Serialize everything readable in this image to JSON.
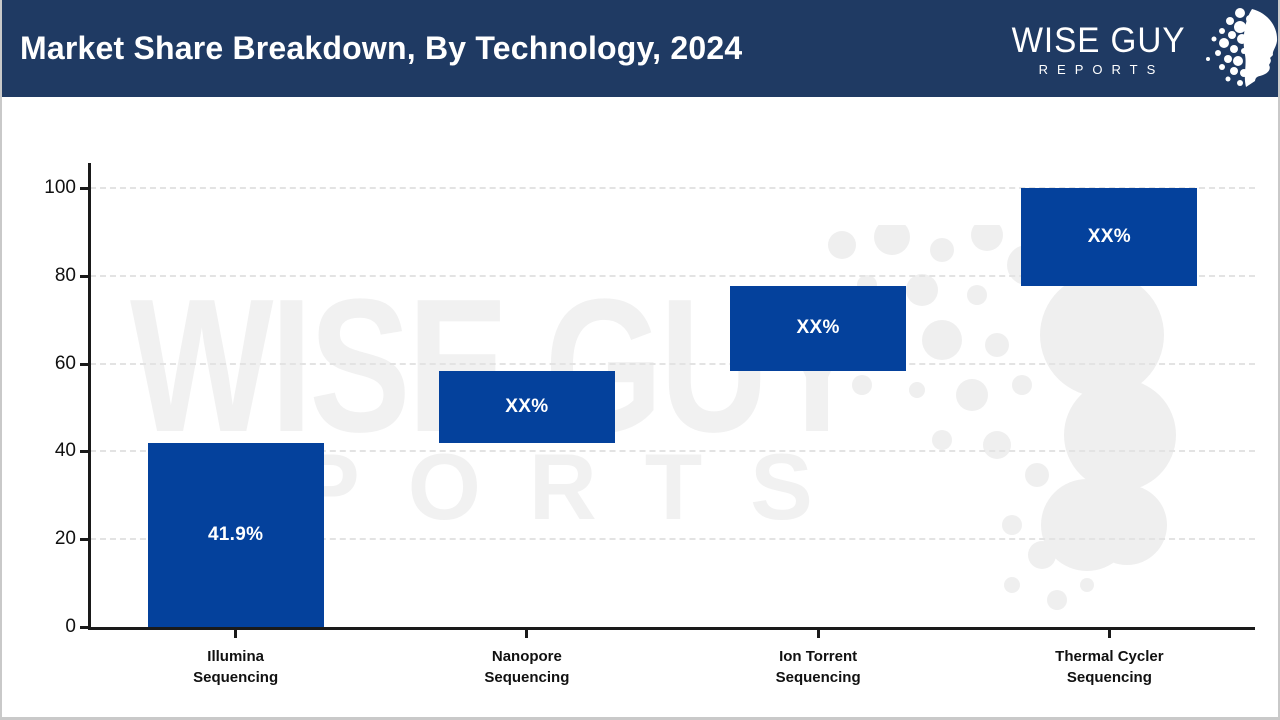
{
  "header": {
    "title": "Market Share Breakdown, By Technology, 2024",
    "logo": {
      "line1": "WISE GUY",
      "line2": "REPORTS"
    }
  },
  "watermark": {
    "line1": "WISE GUY",
    "line2": "PORTS"
  },
  "chart_data": {
    "type": "bar",
    "subtype": "waterfall",
    "title": "Market Share Breakdown, By Technology, 2024",
    "categories": [
      "Illumina\nSequencing",
      "Nanopore\nSequencing",
      "Ion Torrent\nSequencing",
      "Thermal Cycler\nSequencing"
    ],
    "segments": [
      {
        "start": 0,
        "end": 41.9,
        "label": "41.9%"
      },
      {
        "start": 42.0,
        "end": 58.3,
        "label": "XX%"
      },
      {
        "start": 58.3,
        "end": 77.7,
        "label": "XX%"
      },
      {
        "start": 77.7,
        "end": 100,
        "label": "XX%"
      }
    ],
    "ylim": [
      0,
      100
    ],
    "yticks": [
      0,
      20,
      40,
      60,
      80,
      100
    ],
    "xlabel": "",
    "ylabel": "",
    "grid": "horizontal-dashed",
    "legend": "none",
    "bar_color": "#04419c",
    "bar_label_color": "#ffffff"
  },
  "colors": {
    "header_bg": "#1f3a63",
    "bar": "#04419c",
    "gridline": "#e3e3e3",
    "axis": "#1a1a1a",
    "watermark": "#f1f1f1",
    "frame_border": "#c9c9c9"
  }
}
